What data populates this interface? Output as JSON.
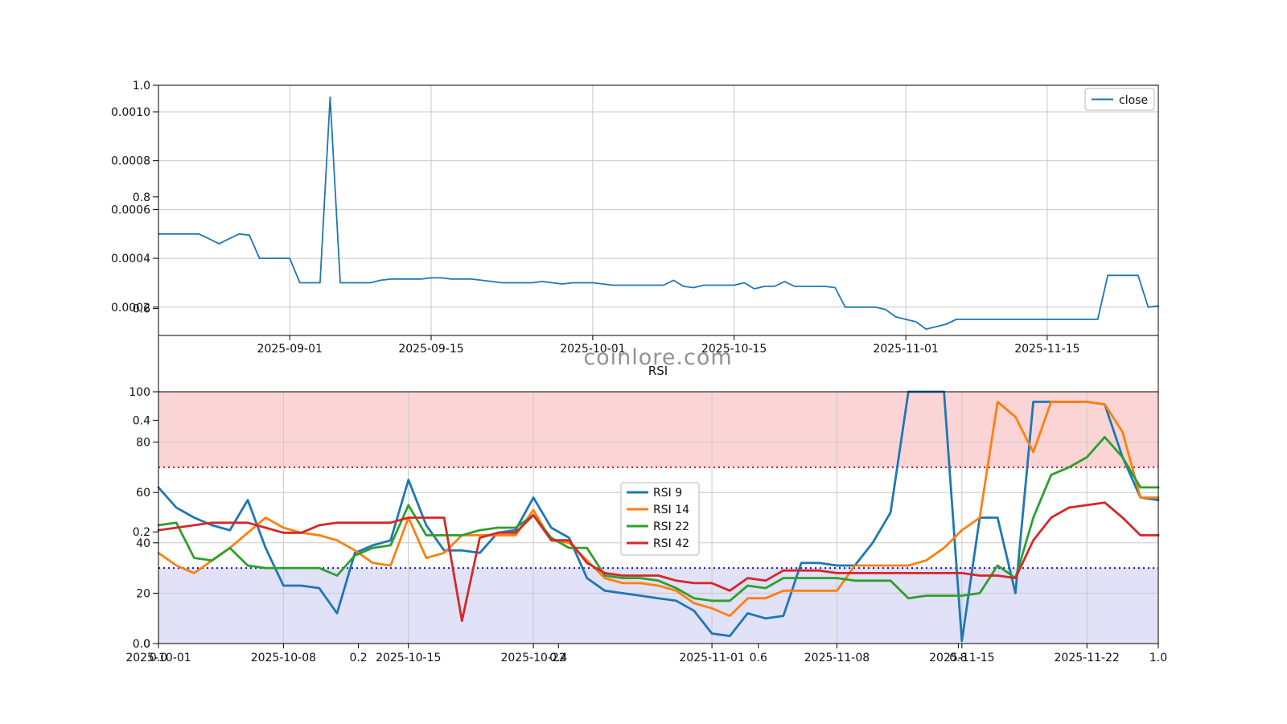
{
  "watermark": "coinlore.com",
  "price_chart": {
    "legend_label": "close",
    "line_color": "#1f77b4",
    "y_tick_labels": [
      "0.0010",
      "0.0008",
      "0.0006",
      "0.0004",
      "0.0002"
    ],
    "y_tick_values": [
      0.001,
      0.0008,
      0.0006,
      0.0004,
      0.0002
    ],
    "x_tick_labels": [
      "2025-09-01",
      "2025-09-15",
      "2025-10-01",
      "2025-10-15",
      "2025-11-01",
      "2025-11-15"
    ]
  },
  "rsi_chart": {
    "title": "RSI",
    "y_tick_labels": [
      "100",
      "80",
      "60",
      "40",
      "20",
      "0"
    ],
    "y_tick_values": [
      100,
      80,
      60,
      40,
      20,
      0
    ],
    "x_tick_labels": [
      "2025-10-01",
      "2025-10-08",
      "2025-10-15",
      "2025-10-22",
      "2025-11-01",
      "2025-11-08",
      "2025-11-15",
      "2025-11-22"
    ],
    "overbought_level": 70,
    "oversold_level": 30,
    "overbought_line_color": "#cc1122",
    "oversold_line_color": "#1111cc",
    "overbought_band_color": "#fbd5d5",
    "oversold_band_color": "#e1e1f7",
    "legend": [
      {
        "label": "RSI 9",
        "color": "#1f77b4"
      },
      {
        "label": "RSI 14",
        "color": "#ff7f0e"
      },
      {
        "label": "RSI 22",
        "color": "#2ca02c"
      },
      {
        "label": "RSI 42",
        "color": "#d62728"
      }
    ]
  },
  "overlay_axis": {
    "x_tick_labels": [
      "0.0",
      "0.2",
      "0.4",
      "0.6",
      "0.8",
      "1.0"
    ],
    "y_tick_labels": [
      "1.0",
      "0.8",
      "0.6",
      "0.4",
      "0.2",
      "0.0"
    ]
  },
  "chart_data": [
    {
      "type": "line",
      "name": "price",
      "title": "",
      "xlabel": "",
      "ylabel": "",
      "x_start": "2025-08-19",
      "x_end": "2025-11-26",
      "x_unit": "day",
      "ylim": [
        8.4e-05,
        0.00111
      ],
      "grid": true,
      "legend_position": "upper right",
      "series": [
        {
          "name": "close",
          "color": "#1f77b4",
          "values": [
            0.0005,
            0.0005,
            0.0005,
            0.0005,
            0.0005,
            0.00048,
            0.00046,
            0.00048,
            0.0005,
            0.000495,
            0.0004,
            0.0004,
            0.0004,
            0.0004,
            0.0003,
            0.0003,
            0.0003,
            0.00106,
            0.0003,
            0.0003,
            0.0003,
            0.0003,
            0.00031,
            0.000315,
            0.000315,
            0.000315,
            0.000315,
            0.00032,
            0.00032,
            0.000315,
            0.000315,
            0.000315,
            0.00031,
            0.000305,
            0.0003,
            0.0003,
            0.0003,
            0.0003,
            0.000305,
            0.0003,
            0.000295,
            0.0003,
            0.0003,
            0.0003,
            0.000295,
            0.00029,
            0.00029,
            0.00029,
            0.00029,
            0.00029,
            0.00029,
            0.00031,
            0.000285,
            0.00028,
            0.00029,
            0.00029,
            0.00029,
            0.00029,
            0.0003,
            0.000275,
            0.000285,
            0.000285,
            0.000305,
            0.000285,
            0.000285,
            0.000285,
            0.000285,
            0.00028,
            0.0002,
            0.0002,
            0.0002,
            0.0002,
            0.00019,
            0.00016,
            0.00015,
            0.00014,
            0.00011,
            0.00012,
            0.00013,
            0.00015,
            0.00015,
            0.00015,
            0.00015,
            0.00015,
            0.00015,
            0.00015,
            0.00015,
            0.00015,
            0.00015,
            0.00015,
            0.00015,
            0.00015,
            0.00015,
            0.00015,
            0.00033,
            0.00033,
            0.00033,
            0.00033,
            0.0002,
            0.000205
          ]
        }
      ]
    },
    {
      "type": "line",
      "name": "RSI",
      "title": "RSI",
      "xlabel": "",
      "ylabel": "",
      "x_start": "2025-10-01",
      "x_end": "2025-11-26",
      "x_unit": "day",
      "ylim": [
        0,
        100
      ],
      "grid": true,
      "hlines": [
        70,
        30
      ],
      "bands": [
        [
          70,
          100
        ],
        [
          0,
          30
        ]
      ],
      "legend_position": "center",
      "series": [
        {
          "name": "RSI 9",
          "color": "#1f77b4",
          "values": [
            62,
            54,
            50,
            47,
            45,
            57,
            38,
            23,
            23,
            22,
            12,
            36,
            39,
            41,
            65,
            47,
            37,
            37,
            36,
            44,
            45,
            58,
            46,
            42,
            26,
            21,
            20,
            19,
            18,
            17,
            13,
            4,
            3,
            12,
            10,
            11,
            32,
            32,
            31,
            31,
            40,
            52,
            100,
            100,
            100,
            1,
            50,
            50,
            20,
            96,
            96,
            96,
            96,
            95,
            74,
            58,
            57
          ]
        },
        {
          "name": "RSI 14",
          "color": "#ff7f0e",
          "values": [
            36,
            31,
            28,
            33,
            38,
            44,
            50,
            46,
            44,
            43,
            41,
            37,
            32,
            31,
            50,
            34,
            36,
            43,
            43,
            43,
            43,
            53,
            41,
            40,
            33,
            26,
            24,
            24,
            23,
            21,
            16,
            14,
            11,
            18,
            18,
            21,
            21,
            21,
            21,
            31,
            31,
            31,
            31,
            33,
            38,
            45,
            50,
            96,
            90,
            76,
            96,
            96,
            96,
            95,
            84,
            58,
            58
          ]
        },
        {
          "name": "RSI 22",
          "color": "#2ca02c",
          "values": [
            47,
            48,
            34,
            33,
            38,
            31,
            30,
            30,
            30,
            30,
            27,
            35,
            38,
            39,
            55,
            43,
            43,
            43,
            45,
            46,
            46,
            51,
            42,
            38,
            38,
            27,
            26,
            26,
            25,
            22,
            18,
            17,
            17,
            23,
            22,
            26,
            26,
            26,
            26,
            25,
            25,
            25,
            18,
            19,
            19,
            19,
            20,
            31,
            26,
            50,
            67,
            70,
            74,
            82,
            74,
            62,
            62
          ]
        },
        {
          "name": "RSI 42",
          "color": "#d62728",
          "values": [
            45,
            46,
            47,
            48,
            48,
            48,
            46,
            44,
            44,
            47,
            48,
            48,
            48,
            48,
            50,
            50,
            50,
            9,
            42,
            44,
            44,
            51,
            41,
            41,
            32,
            28,
            27,
            27,
            27,
            25,
            24,
            24,
            21,
            26,
            25,
            29,
            29,
            29,
            28,
            28,
            28,
            28,
            28,
            28,
            28,
            28,
            27,
            27,
            26,
            41,
            50,
            54,
            55,
            56,
            50,
            43,
            43
          ]
        }
      ]
    }
  ]
}
